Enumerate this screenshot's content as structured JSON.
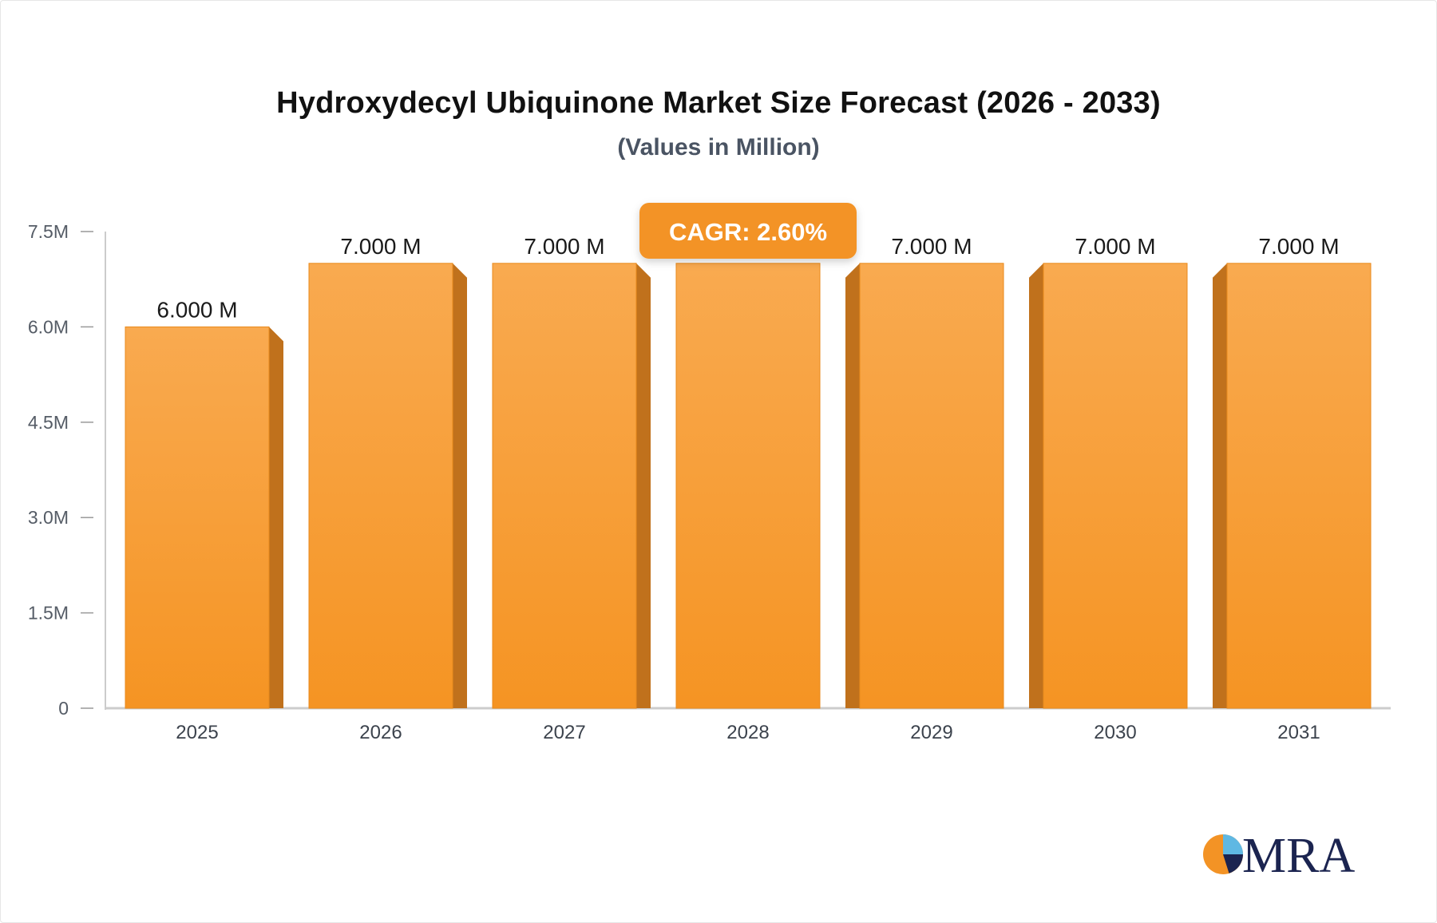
{
  "header": {
    "title": "Hydroxydecyl Ubiquinone Market Size Forecast (2026 - 2033)",
    "subtitle": "(Values in Million)"
  },
  "badge": {
    "label": "CAGR: 2.60%",
    "color": "#f39325"
  },
  "logo": {
    "text": "MRA",
    "icon": "pie-logo-icon"
  },
  "chart_data": {
    "type": "bar",
    "title": "Hydroxydecyl Ubiquinone Market Size Forecast (2026 - 2033)",
    "subtitle": "(Values in Million)",
    "categories": [
      "2025",
      "2026",
      "2027",
      "2028",
      "2029",
      "2030",
      "2031"
    ],
    "values": [
      6.0,
      7.0,
      7.0,
      7.0,
      7.0,
      7.0,
      7.0
    ],
    "value_labels": [
      "6.000 M",
      "7.000 M",
      "7.000 M",
      "",
      "7.000 M",
      "7.000 M",
      "7.000 M"
    ],
    "y_ticks": [
      {
        "value": 0,
        "label": "0"
      },
      {
        "value": 1.5,
        "label": "1.5M"
      },
      {
        "value": 3.0,
        "label": "3.0M"
      },
      {
        "value": 4.5,
        "label": "4.5M"
      },
      {
        "value": 6.0,
        "label": "6.0M"
      },
      {
        "value": 7.5,
        "label": "7.5M"
      }
    ],
    "ylim": [
      0,
      7.5
    ],
    "xlabel": "",
    "ylabel": "",
    "grid": false,
    "colors": {
      "bar_top": "#f9aa50",
      "bar_bottom": "#f59423",
      "bar_side": "#c0711c",
      "axis": "#cccccc"
    }
  }
}
